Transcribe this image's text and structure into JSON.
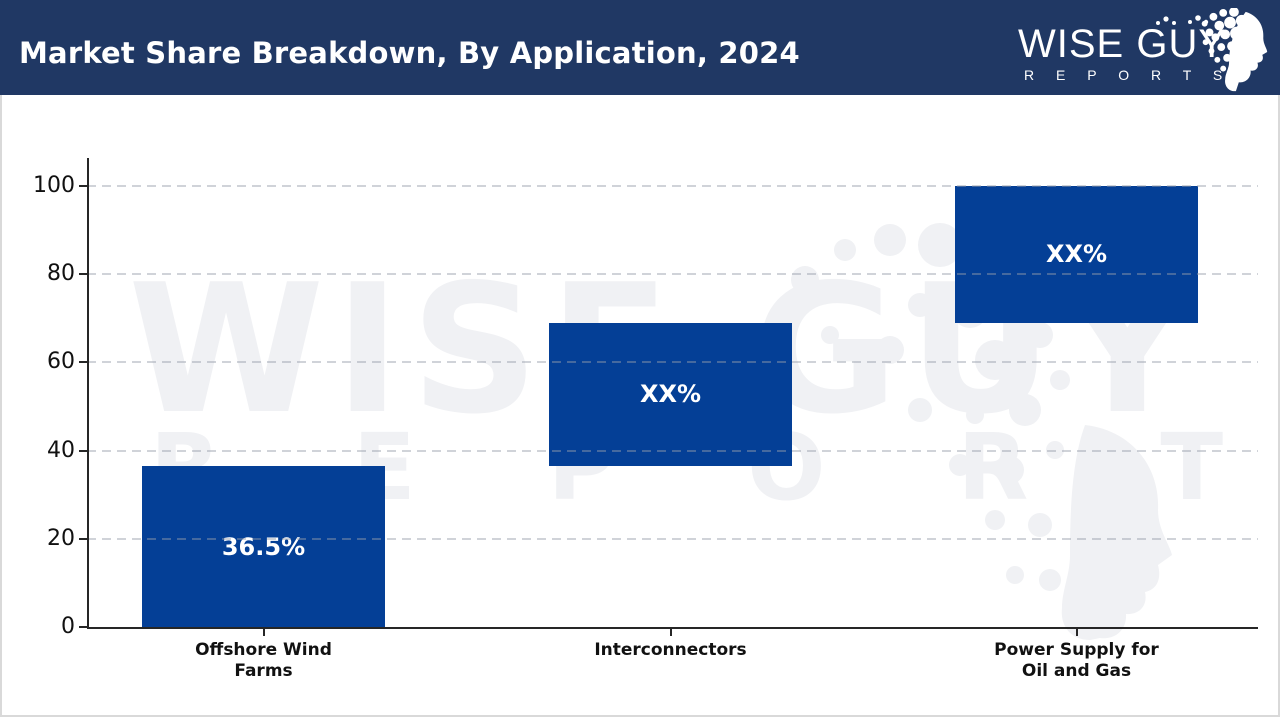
{
  "header": {
    "title": "Market Share Breakdown, By Application, 2024",
    "logo": {
      "wordmark": "WISE GUY",
      "sub": "R E P O R T S"
    }
  },
  "watermark": {
    "wordmark": "WISE GUY",
    "sub": "R E P O R T S"
  },
  "colors": {
    "header_bg": "#203864",
    "bar": "#043f96",
    "bar_label": "#ffffff",
    "axis": "#262626",
    "grid": "rgba(150,157,170,0.45)",
    "watermark": "#f0f1f4",
    "border": "#d9d9d9"
  },
  "chart_data": {
    "type": "bar",
    "subtype": "waterfall",
    "title": "Market Share Breakdown, By Application, 2024",
    "categories": [
      [
        "Offshore Wind",
        "Farms"
      ],
      [
        "Interconnectors"
      ],
      [
        "Power Supply for",
        "Oil and Gas"
      ]
    ],
    "bars": [
      {
        "start": 0,
        "end": 36.5,
        "label": "36.5%"
      },
      {
        "start": 36.5,
        "end": 69,
        "label": "XX%"
      },
      {
        "start": 69,
        "end": 100,
        "label": "XX%"
      }
    ],
    "yticks": [
      0,
      20,
      40,
      60,
      80,
      100
    ],
    "ylim": [
      0,
      106
    ],
    "xlabel": "",
    "ylabel": "",
    "grid": "horizontal-dashed",
    "legend": "none",
    "bar_color": "#043f96",
    "value_label_color": "#ffffff"
  }
}
